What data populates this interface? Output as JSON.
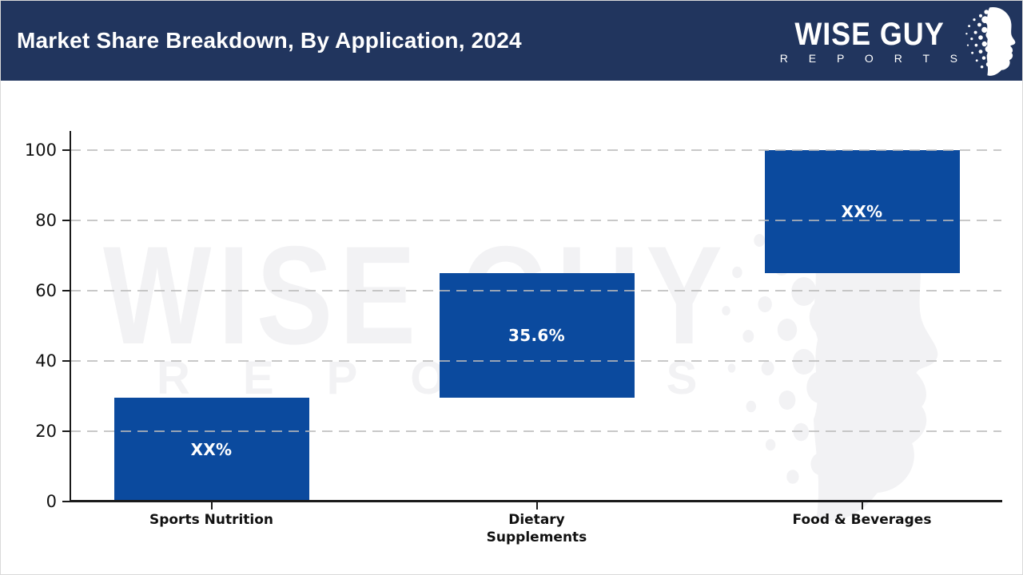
{
  "header": {
    "title": "Market Share Breakdown, By Application, 2024",
    "bg_color": "#21355e",
    "logo": {
      "line1": "WISE GUY",
      "line2": "R E P O R T S"
    }
  },
  "watermark": {
    "line1": "WISE GUY",
    "line2": "REPORTS"
  },
  "chart_data": {
    "type": "bar",
    "subtype": "waterfall",
    "title": "Market Share Breakdown, By Application, 2024",
    "categories": [
      "Sports Nutrition",
      "Dietary\nSupplements",
      "Food & Beverages"
    ],
    "series": [
      {
        "name": "Sports Nutrition",
        "start": 0,
        "end": 29.5,
        "value_label": "XX%"
      },
      {
        "name": "Dietary Supplements",
        "start": 29.5,
        "end": 65.1,
        "value_label": "35.6%"
      },
      {
        "name": "Food & Beverages",
        "start": 65.1,
        "end": 100,
        "value_label": "XX%"
      }
    ],
    "xlabel": "",
    "ylabel": "",
    "ylim": [
      0,
      105
    ],
    "yticks": [
      0,
      20,
      40,
      60,
      80,
      100
    ],
    "legend": "none",
    "grid": {
      "axis": "y",
      "style": "dashed",
      "color": "#cccccc",
      "on_top_of_bars": true
    },
    "colors": {
      "bar": "#0b4a9e",
      "bar_label": "#ffffff",
      "axis": "#1a1a1a",
      "tick_label": "#111111",
      "header_bg": "#21355e",
      "watermark": "#f2f2f4"
    }
  }
}
